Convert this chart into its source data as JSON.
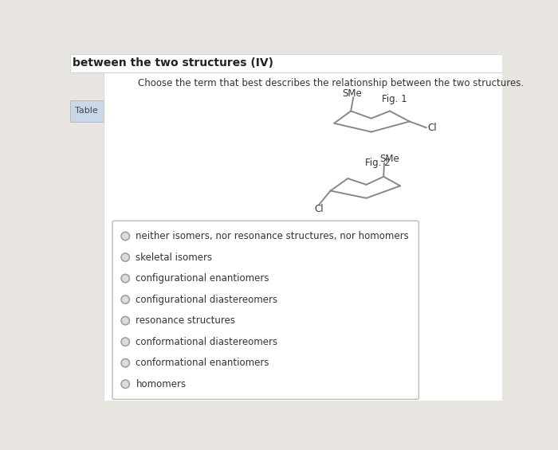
{
  "title": "between the two structures (IV)",
  "question": "Choose the term that best describes the relationship between the two structures.",
  "fig1_label": "Fig. 1",
  "fig1_sme_label": "SMe",
  "fig1_cl_label": "Cl",
  "fig2_label": "Fig. 2",
  "fig2_sme_label": "SMe",
  "fig2_cl_label": "Cl",
  "table_label": "Table",
  "options": [
    "neither isomers, nor resonance structures, nor homomers",
    "skeletal isomers",
    "configurational enantiomers",
    "configurational diastereomers",
    "resonance structures",
    "conformational diastereomers",
    "conformational enantiomers",
    "homomers"
  ],
  "bg_color": "#e8e4e0",
  "line_color": "#888888",
  "text_color": "#333333",
  "title_color": "#222222",
  "header_bg": "#c8d8e8"
}
